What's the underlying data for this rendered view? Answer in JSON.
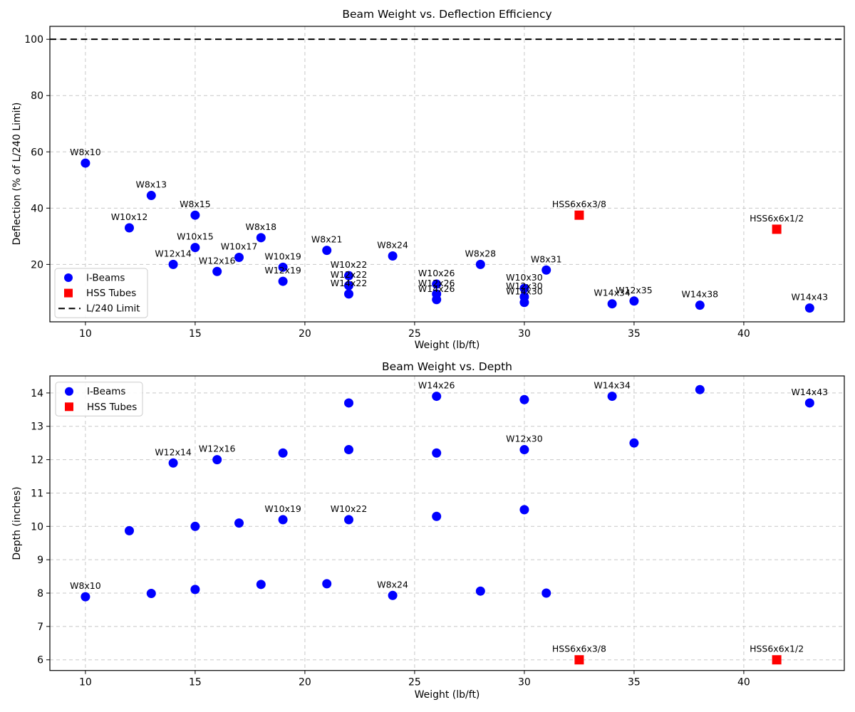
{
  "figure": {
    "background": "#ffffff",
    "ibeam_color": "#0000ff",
    "hss_color": "#ff0000",
    "limit_color": "#000000",
    "grid_color": "#c8c8c8"
  },
  "chart_data": [
    {
      "type": "scatter",
      "title": "Beam Weight vs. Deflection Efficiency",
      "xlabel": "Weight (lb/ft)",
      "ylabel": "Deflection (% of L/240 Limit)",
      "xlim": [
        8.38,
        44.58
      ],
      "ylim": [
        -0.4,
        104.6
      ],
      "xticks": [
        10,
        15,
        20,
        25,
        30,
        35,
        40
      ],
      "yticks": [
        20,
        40,
        60,
        80,
        100
      ],
      "grid": true,
      "legend_position": "lower-left",
      "legend_entries": [
        {
          "label": "I-Beams",
          "marker": "circle",
          "color": "#0000ff"
        },
        {
          "label": "HSS Tubes",
          "marker": "square",
          "color": "#ff0000"
        },
        {
          "label": "L/240 Limit",
          "marker": "dashed-line",
          "color": "#000000"
        }
      ],
      "limit_line": {
        "label": "L/240 Limit",
        "y": 100,
        "style": "dashed",
        "color": "#000000"
      },
      "series": [
        {
          "name": "I-Beams",
          "marker": "circle",
          "color": "#0000ff",
          "points": [
            {
              "x": 10,
              "y": 56,
              "label": "W8x10"
            },
            {
              "x": 12,
              "y": 33,
              "label": "W10x12"
            },
            {
              "x": 13,
              "y": 44.5,
              "label": "W8x13"
            },
            {
              "x": 14,
              "y": 20,
              "label": "W12x14"
            },
            {
              "x": 15,
              "y": 37.5,
              "label": "W8x15"
            },
            {
              "x": 15,
              "y": 26,
              "label": "W10x15"
            },
            {
              "x": 16,
              "y": 17.5,
              "label": "W12x16"
            },
            {
              "x": 17,
              "y": 22.5,
              "label": "W10x17"
            },
            {
              "x": 18,
              "y": 29.5,
              "label": "W8x18"
            },
            {
              "x": 19,
              "y": 19,
              "label": "W10x19"
            },
            {
              "x": 19,
              "y": 14,
              "label": "W12x19"
            },
            {
              "x": 21,
              "y": 25,
              "label": "W8x21"
            },
            {
              "x": 22,
              "y": 16,
              "label": "W10x22"
            },
            {
              "x": 22,
              "y": 12.5,
              "label": "W12x22"
            },
            {
              "x": 22,
              "y": 9.5,
              "label": "W14x22"
            },
            {
              "x": 24,
              "y": 23,
              "label": "W8x24"
            },
            {
              "x": 26,
              "y": 13,
              "label": "W10x26"
            },
            {
              "x": 26,
              "y": 9.5,
              "label": "W12x26"
            },
            {
              "x": 26,
              "y": 7.5,
              "label": "W14x26"
            },
            {
              "x": 28,
              "y": 20,
              "label": "W8x28"
            },
            {
              "x": 30,
              "y": 11.5,
              "label": "W10x30"
            },
            {
              "x": 30,
              "y": 8.5,
              "label": "W12x30"
            },
            {
              "x": 30,
              "y": 6.5,
              "label": "W14x30"
            },
            {
              "x": 31,
              "y": 18,
              "label": "W8x31"
            },
            {
              "x": 34,
              "y": 6,
              "label": "W14x34"
            },
            {
              "x": 35,
              "y": 7,
              "label": "W12x35"
            },
            {
              "x": 38,
              "y": 5.5,
              "label": "W14x38"
            },
            {
              "x": 43,
              "y": 4.5,
              "label": "W14x43"
            }
          ]
        },
        {
          "name": "HSS Tubes",
          "marker": "square",
          "color": "#ff0000",
          "points": [
            {
              "x": 32.5,
              "y": 37.5,
              "label": "HSS6x6x3/8"
            },
            {
              "x": 41.5,
              "y": 32.5,
              "label": "HSS6x6x1/2"
            }
          ]
        }
      ]
    },
    {
      "type": "scatter",
      "title": "Beam Weight vs. Depth",
      "xlabel": "Weight (lb/ft)",
      "ylabel": "Depth (inches)",
      "xlim": [
        8.38,
        44.58
      ],
      "ylim": [
        5.68,
        14.51
      ],
      "xticks": [
        10,
        15,
        20,
        25,
        30,
        35,
        40
      ],
      "yticks": [
        6,
        7,
        8,
        9,
        10,
        11,
        12,
        13,
        14
      ],
      "grid": true,
      "legend_position": "upper-left",
      "legend_entries": [
        {
          "label": "I-Beams",
          "marker": "circle",
          "color": "#0000ff"
        },
        {
          "label": "HSS Tubes",
          "marker": "square",
          "color": "#ff0000"
        }
      ],
      "series": [
        {
          "name": "I-Beams",
          "marker": "circle",
          "color": "#0000ff",
          "points": [
            {
              "x": 10,
              "y": 7.89,
              "label": "W8x10"
            },
            {
              "x": 12,
              "y": 9.87,
              "label": ""
            },
            {
              "x": 13,
              "y": 7.99,
              "label": ""
            },
            {
              "x": 14,
              "y": 11.9,
              "label": "W12x14"
            },
            {
              "x": 15,
              "y": 8.11,
              "label": ""
            },
            {
              "x": 15,
              "y": 10.0,
              "label": ""
            },
            {
              "x": 16,
              "y": 12.0,
              "label": "W12x16"
            },
            {
              "x": 17,
              "y": 10.1,
              "label": ""
            },
            {
              "x": 18,
              "y": 8.26,
              "label": ""
            },
            {
              "x": 19,
              "y": 10.2,
              "label": "W10x19"
            },
            {
              "x": 19,
              "y": 12.2,
              "label": ""
            },
            {
              "x": 21,
              "y": 8.28,
              "label": ""
            },
            {
              "x": 22,
              "y": 10.2,
              "label": "W10x22"
            },
            {
              "x": 22,
              "y": 12.3,
              "label": ""
            },
            {
              "x": 22,
              "y": 13.7,
              "label": ""
            },
            {
              "x": 24,
              "y": 7.93,
              "label": "W8x24"
            },
            {
              "x": 26,
              "y": 10.3,
              "label": ""
            },
            {
              "x": 26,
              "y": 12.2,
              "label": ""
            },
            {
              "x": 26,
              "y": 13.9,
              "label": "W14x26"
            },
            {
              "x": 28,
              "y": 8.06,
              "label": ""
            },
            {
              "x": 30,
              "y": 10.5,
              "label": ""
            },
            {
              "x": 30,
              "y": 12.3,
              "label": "W12x30"
            },
            {
              "x": 30,
              "y": 13.8,
              "label": ""
            },
            {
              "x": 31,
              "y": 8.0,
              "label": ""
            },
            {
              "x": 34,
              "y": 13.9,
              "label": "W14x34"
            },
            {
              "x": 35,
              "y": 12.5,
              "label": ""
            },
            {
              "x": 38,
              "y": 14.1,
              "label": ""
            },
            {
              "x": 43,
              "y": 13.7,
              "label": "W14x43"
            }
          ]
        },
        {
          "name": "HSS Tubes",
          "marker": "square",
          "color": "#ff0000",
          "points": [
            {
              "x": 32.5,
              "y": 6.0,
              "label": "HSS6x6x3/8"
            },
            {
              "x": 41.5,
              "y": 6.0,
              "label": "HSS6x6x1/2"
            }
          ]
        }
      ]
    }
  ]
}
